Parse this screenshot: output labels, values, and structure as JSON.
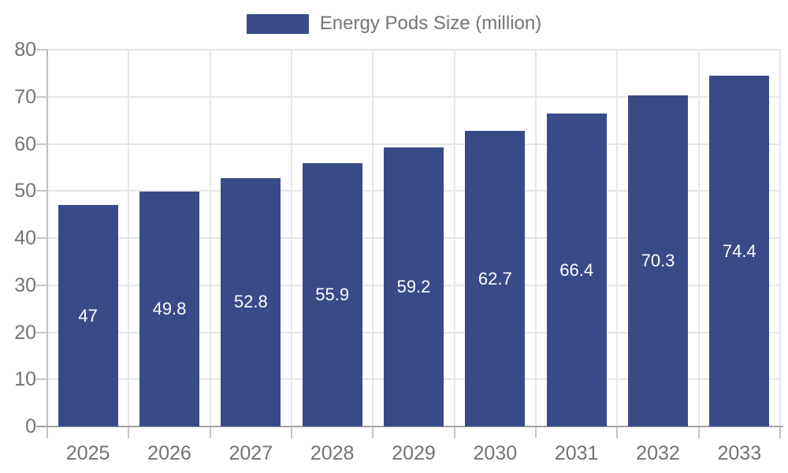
{
  "chart_data": {
    "type": "bar",
    "legend": "Energy Pods Size (million)",
    "legend_position": "top-center",
    "categories": [
      "2025",
      "2026",
      "2027",
      "2028",
      "2029",
      "2030",
      "2031",
      "2032",
      "2033"
    ],
    "values": [
      47,
      49.8,
      52.8,
      55.9,
      59.2,
      62.7,
      66.4,
      70.3,
      74.4
    ],
    "bar_labels": [
      "47",
      "49.8",
      "52.8",
      "55.9",
      "59.2",
      "62.7",
      "66.4",
      "70.3",
      "74.4"
    ],
    "title": "",
    "xlabel": "",
    "ylabel": "",
    "ylim": [
      0,
      80
    ],
    "yticks": [
      0,
      10,
      20,
      30,
      40,
      50,
      60,
      70,
      80
    ],
    "grid": true,
    "bar_color": "#394B87",
    "bar_label_color": "#ffffff",
    "axis_text_color": "#737373",
    "gridline_color": "#e7e7e7"
  }
}
